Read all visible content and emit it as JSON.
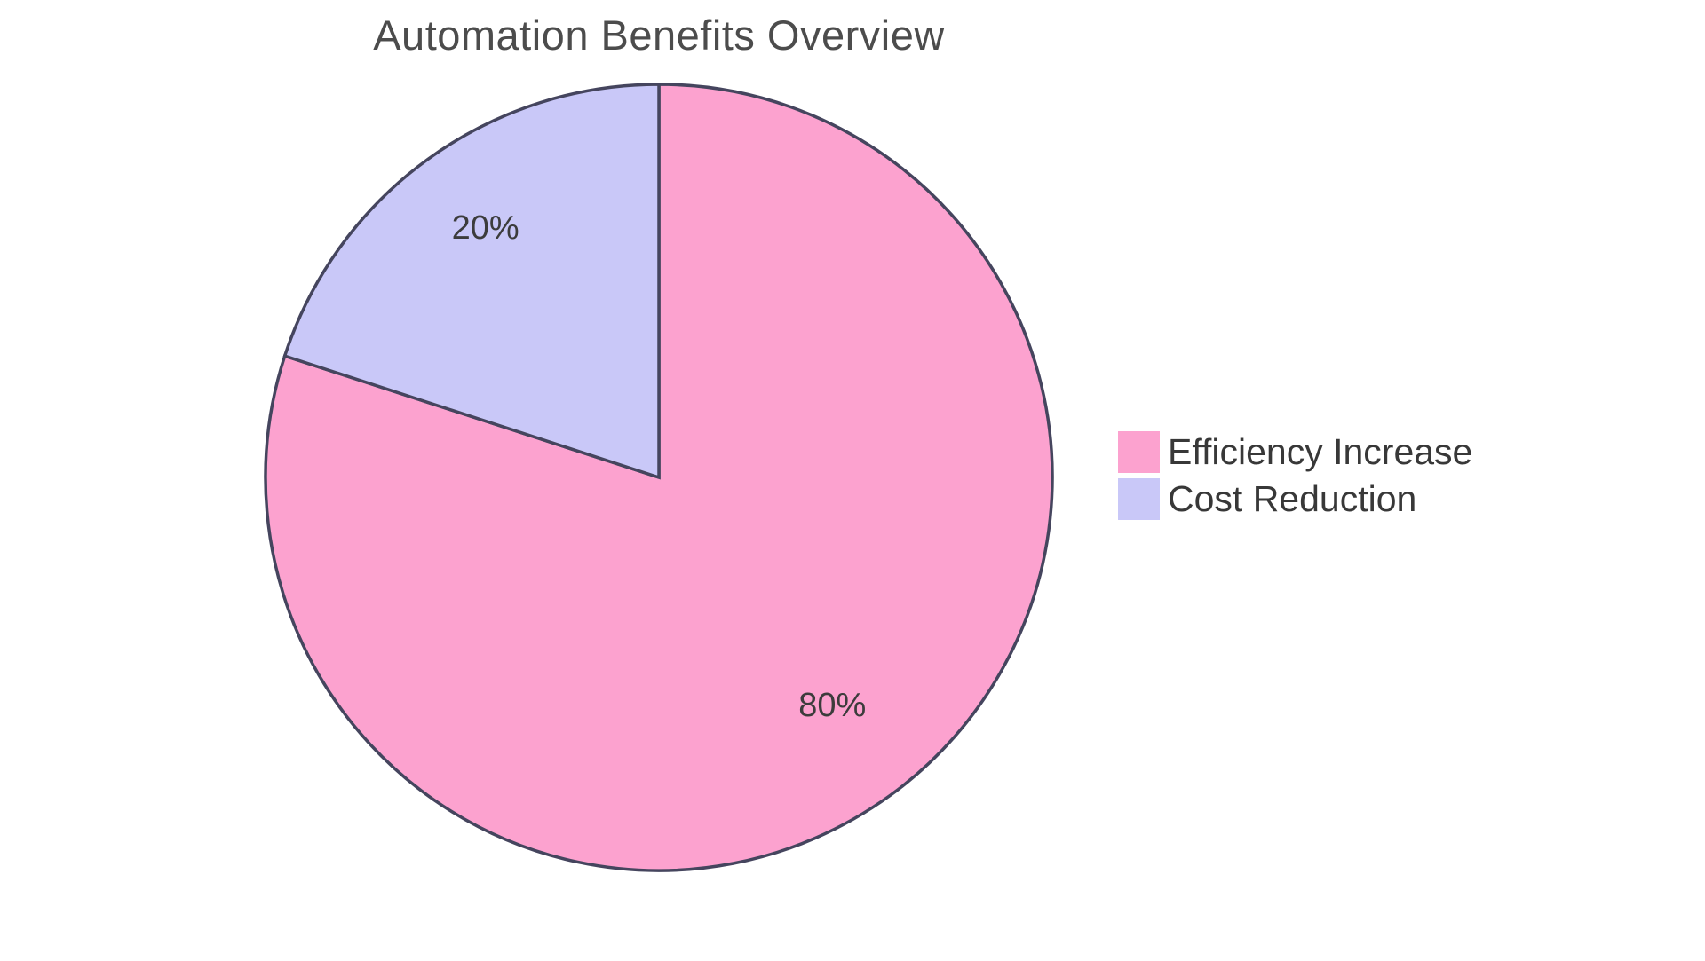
{
  "title": "Automation Benefits Overview",
  "chart_data": {
    "type": "pie",
    "title": "Automation Benefits Overview",
    "series": [
      {
        "name": "Efficiency Increase",
        "value": 80,
        "pct_label": "80%",
        "color": "#FCA2CF"
      },
      {
        "name": "Cost Reduction",
        "value": 20,
        "pct_label": "20%",
        "color": "#C9C8F8"
      }
    ],
    "total": 100,
    "start_angle_deg": 0,
    "direction": "clockwise",
    "legend_position": "right",
    "slice_stroke_color": "#45455E",
    "slice_label_color": "#3C3C3C",
    "title_color": "#4C4C4C",
    "background_color": "#FFFFFF"
  }
}
